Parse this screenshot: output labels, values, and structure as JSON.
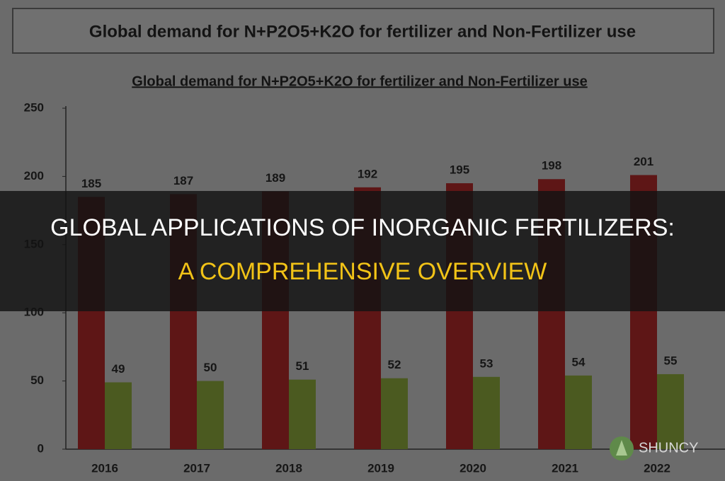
{
  "chart_data": {
    "type": "bar",
    "title": "Global demand for N+P2O5+K2O for fertilizer and Non-Fertilizer use",
    "subtitle": "Global demand for N+P2O5+K2O for fertilizer and Non-Fertilizer use",
    "categories": [
      "2016",
      "2017",
      "2018",
      "2019",
      "2020",
      "2021",
      "2022"
    ],
    "series": [
      {
        "color": "#5e1616",
        "values": [
          185,
          187,
          189,
          192,
          195,
          198,
          201
        ]
      },
      {
        "color": "#4b5a20",
        "values": [
          49,
          50,
          51,
          52,
          53,
          54,
          55
        ]
      }
    ],
    "ylim": [
      0,
      250
    ],
    "yticks": [
      0,
      50,
      100,
      150,
      200,
      250
    ],
    "grid": false
  },
  "banner": {
    "line1": "Global Applications Of Inorganic Fertilizers:",
    "line2": "A Comprehensive Overview"
  },
  "logo": {
    "name": "SHUNCY"
  }
}
